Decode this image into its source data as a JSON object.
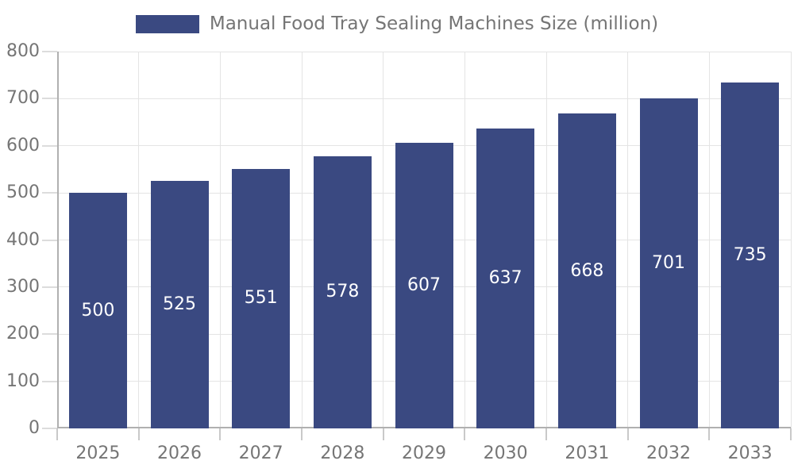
{
  "legend": {
    "items": [
      {
        "label": "Manual Food Tray Sealing Machines Size (million)",
        "color": "#3a4981"
      }
    ]
  },
  "chart_data": {
    "type": "bar",
    "title": "Manual Food Tray Sealing Machines Size (million)",
    "categories": [
      "2025",
      "2026",
      "2027",
      "2028",
      "2029",
      "2030",
      "2031",
      "2032",
      "2033"
    ],
    "series": [
      {
        "name": "Manual Food Tray Sealing Machines Size (million)",
        "values": [
          500,
          525,
          551,
          578,
          607,
          637,
          668,
          701,
          735
        ]
      }
    ],
    "values": [
      500,
      525,
      551,
      578,
      607,
      637,
      668,
      701,
      735
    ],
    "value_labels": [
      "500",
      "525",
      "551",
      "578",
      "607",
      "637",
      "668",
      "701",
      "735"
    ],
    "xlabel": "",
    "ylabel": "",
    "ylim": [
      0,
      800
    ],
    "yticks": [
      0,
      100,
      200,
      300,
      400,
      500,
      600,
      700,
      800
    ],
    "grid": "horizontal-and-vertical",
    "legend_position": "top-center",
    "value_label_position": "inside-center"
  },
  "colors": {
    "bar": "#3a4981",
    "axis_line": "#b0b0b0",
    "grid_line": "#e4e4e4",
    "y_tick": "#dcdcdc",
    "x_tick": "#c9c9c9",
    "tick_label": "#757575",
    "legend_text": "#757575",
    "value_label": "#ffffff",
    "background": "#ffffff"
  }
}
